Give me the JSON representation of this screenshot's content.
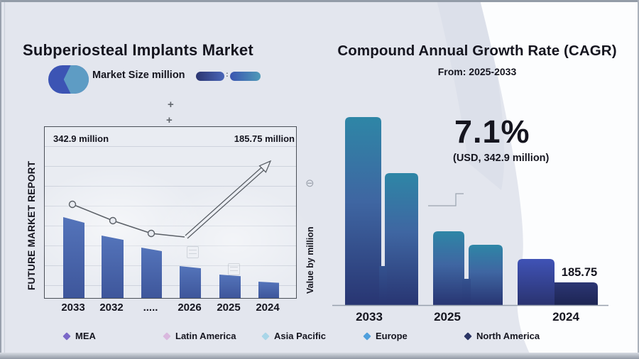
{
  "left_section": {
    "title": "Subperiosteal Implants Market",
    "marketsize_label": "Market Size million",
    "pill_separator": ":",
    "plus_mark": "+",
    "annotation_left": "342.9 million",
    "annotation_right": "185.75 million",
    "watermark_vertical": "FUTURE MARKET REPORT",
    "ylabel_right": "Value by million",
    "minus_circle_glyph": "⊖",
    "x_labels": [
      "2033",
      "2032",
      ".....",
      "2026",
      "2025",
      "2024"
    ]
  },
  "right_section": {
    "title": "Compound Annual Growth Rate (CAGR)",
    "subtitle": "From: 2025-2033",
    "cagr_value": "7.1%",
    "cagr_note": "(USD, 342.9 million)",
    "bar_value_label": "185.75",
    "x_labels": [
      "2033",
      "2025",
      "2024"
    ]
  },
  "legend": {
    "items": [
      {
        "label": "MEA",
        "color": "#7b68c8"
      },
      {
        "label": "Latin America",
        "color": "#d9b8de"
      },
      {
        "label": "Asia Pacific",
        "color": "#a9d6e8"
      },
      {
        "label": "Europe",
        "color": "#4f9fdc"
      },
      {
        "label": "North America",
        "color": "#2b3565"
      }
    ]
  },
  "chart_data": [
    {
      "id": "market-size-by-year",
      "type": "bar",
      "title": "Subperiosteal Implants Market - Market Size million",
      "categories": [
        "2033",
        "2032",
        ".....",
        "2026",
        "2025",
        "2024"
      ],
      "bar_heights_relative": [
        114,
        88,
        71,
        45,
        33,
        23
      ],
      "values_labeled": {
        "2033": 342.9,
        "2024": 185.75
      },
      "annotations": [
        "342.9 million",
        "185.75 million"
      ],
      "ylabel": "Value by million",
      "overlay": "declining marker line over 2033-2026 then rising outline arrow toward 185.75 million",
      "grid": "horizontal",
      "bar_color": "slate-blue gradient"
    },
    {
      "id": "cagr-by-year",
      "type": "bar",
      "title": "Compound Annual Growth Rate (CAGR)",
      "subtitle": "From: 2025-2033",
      "cagr_percent": 7.1,
      "cagr_basis": "(USD, 342.9 million)",
      "categories": [
        "2033",
        "2025",
        "2024"
      ],
      "series": [
        {
          "name": "bar-a",
          "heights_relative": [
            265,
            104,
            65
          ]
        },
        {
          "name": "bar-b",
          "heights_relative": [
            186,
            85,
            32
          ]
        }
      ],
      "values_labeled": {
        "2024": 185.75
      },
      "bar_color": "teal-to-navy gradient",
      "grid": "off"
    }
  ]
}
